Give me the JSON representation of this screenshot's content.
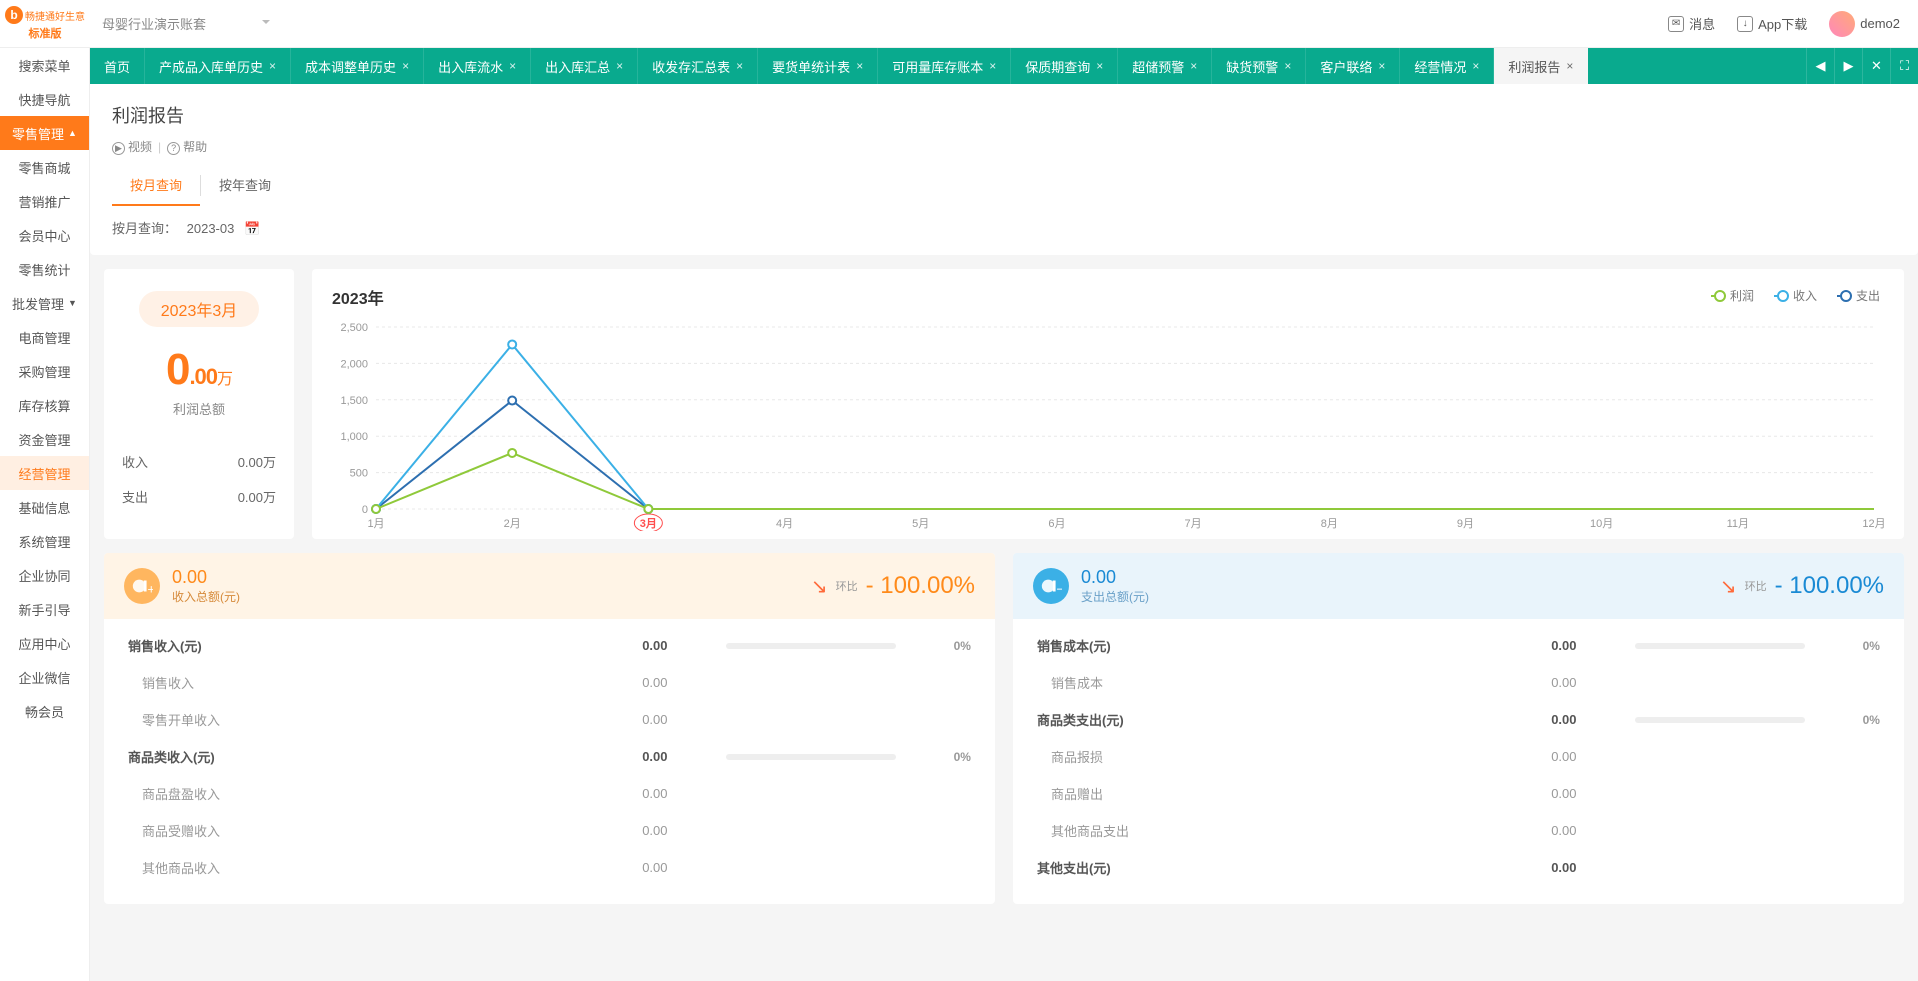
{
  "logo": {
    "brand": "畅捷通好生意",
    "edition": "标准版"
  },
  "account_selector": {
    "label": "母婴行业演示账套"
  },
  "header_right": {
    "messages": "消息",
    "app_download": "App下载",
    "username": "demo2"
  },
  "sidebar": {
    "items": [
      {
        "label": "搜索菜单",
        "type": "plain"
      },
      {
        "label": "快捷导航",
        "type": "plain"
      },
      {
        "label": "零售管理",
        "type": "active",
        "caret": "▲"
      },
      {
        "label": "零售商城",
        "type": "sub"
      },
      {
        "label": "营销推广",
        "type": "sub"
      },
      {
        "label": "会员中心",
        "type": "sub"
      },
      {
        "label": "零售统计",
        "type": "sub"
      },
      {
        "label": "批发管理",
        "type": "plain",
        "caret": "▼"
      },
      {
        "label": "电商管理",
        "type": "plain"
      },
      {
        "label": "采购管理",
        "type": "plain"
      },
      {
        "label": "库存核算",
        "type": "plain"
      },
      {
        "label": "资金管理",
        "type": "plain"
      },
      {
        "label": "经营管理",
        "type": "active-sub"
      },
      {
        "label": "基础信息",
        "type": "plain"
      },
      {
        "label": "系统管理",
        "type": "plain"
      },
      {
        "label": "企业协同",
        "type": "plain"
      },
      {
        "label": "新手引导",
        "type": "plain"
      },
      {
        "label": "应用中心",
        "type": "plain"
      },
      {
        "label": "企业微信",
        "type": "plain"
      },
      {
        "label": "畅会员",
        "type": "plain"
      }
    ]
  },
  "tabs": [
    {
      "label": "首页",
      "closable": false
    },
    {
      "label": "产成品入库单历史",
      "closable": true
    },
    {
      "label": "成本调整单历史",
      "closable": true
    },
    {
      "label": "出入库流水",
      "closable": true
    },
    {
      "label": "出入库汇总",
      "closable": true
    },
    {
      "label": "收发存汇总表",
      "closable": true
    },
    {
      "label": "要货单统计表",
      "closable": true
    },
    {
      "label": "可用量库存账本",
      "closable": true
    },
    {
      "label": "保质期查询",
      "closable": true
    },
    {
      "label": "超储预警",
      "closable": true
    },
    {
      "label": "缺货预警",
      "closable": true
    },
    {
      "label": "客户联络",
      "closable": true
    },
    {
      "label": "经营情况",
      "closable": true
    },
    {
      "label": "利润报告",
      "closable": true,
      "active": true
    }
  ],
  "page": {
    "title": "利润报告",
    "links": {
      "video": "视频",
      "help": "帮助"
    },
    "view_tabs": {
      "by_month": "按月查询",
      "by_year": "按年查询"
    },
    "filter": {
      "label": "按月查询：",
      "value": "2023-03"
    }
  },
  "summary_card": {
    "period": "2023年3月",
    "profit_int": "0",
    "profit_dec": ".00",
    "profit_unit": "万",
    "profit_label": "利润总额",
    "income_label": "收入",
    "income_value": "0.00万",
    "expense_label": "支出",
    "expense_value": "0.00万"
  },
  "chart": {
    "title": "2023年",
    "legend": {
      "profit": "利润",
      "income": "收入",
      "expense": "支出"
    },
    "colors": {
      "profit": "#8fc93a",
      "income": "#3bb0e6",
      "expense": "#2d6fb0",
      "grid": "#e8e8e8",
      "axis": "#bbb",
      "bg": "#ffffff"
    },
    "ylim": [
      0,
      2500
    ],
    "ytick_step": 500,
    "x_categories": [
      "1月",
      "2月",
      "3月",
      "4月",
      "5月",
      "6月",
      "7月",
      "8月",
      "9月",
      "10月",
      "11月",
      "12月"
    ],
    "highlight_x": "3月",
    "series": {
      "profit": [
        0,
        770,
        0,
        0,
        0,
        0,
        0,
        0,
        0,
        0,
        0,
        0
      ],
      "income": [
        0,
        2260,
        0,
        0,
        0,
        0,
        0,
        0,
        0,
        0,
        0,
        0
      ],
      "expense": [
        0,
        1490,
        0,
        0,
        0,
        0,
        0,
        0,
        0,
        0,
        0,
        0
      ]
    },
    "label_fontsize": 11,
    "title_fontsize": 16
  },
  "income_panel": {
    "value": "0.00",
    "label": "收入总额(元)",
    "hb": "环比",
    "delta": "- 100.00%",
    "rows": [
      {
        "label": "销售收入(元)",
        "value": "0.00",
        "pct": "0%",
        "bold": true,
        "bar": true
      },
      {
        "label": "销售收入",
        "value": "0.00",
        "sub": true
      },
      {
        "label": "零售开单收入",
        "value": "0.00",
        "sub": true
      },
      {
        "label": "商品类收入(元)",
        "value": "0.00",
        "pct": "0%",
        "bold": true,
        "bar": true
      },
      {
        "label": "商品盘盈收入",
        "value": "0.00",
        "sub": true
      },
      {
        "label": "商品受赠收入",
        "value": "0.00",
        "sub": true
      },
      {
        "label": "其他商品收入",
        "value": "0.00",
        "sub": true
      }
    ]
  },
  "expense_panel": {
    "value": "0.00",
    "label": "支出总额(元)",
    "hb": "环比",
    "delta": "- 100.00%",
    "rows": [
      {
        "label": "销售成本(元)",
        "value": "0.00",
        "pct": "0%",
        "bold": true,
        "bar": true
      },
      {
        "label": "销售成本",
        "value": "0.00",
        "sub": true
      },
      {
        "label": "商品类支出(元)",
        "value": "0.00",
        "pct": "0%",
        "bold": true,
        "bar": true
      },
      {
        "label": "商品报损",
        "value": "0.00",
        "sub": true
      },
      {
        "label": "商品赠出",
        "value": "0.00",
        "sub": true
      },
      {
        "label": "其他商品支出",
        "value": "0.00",
        "sub": true
      },
      {
        "label": "其他支出(元)",
        "value": "0.00",
        "bold": true
      }
    ]
  }
}
